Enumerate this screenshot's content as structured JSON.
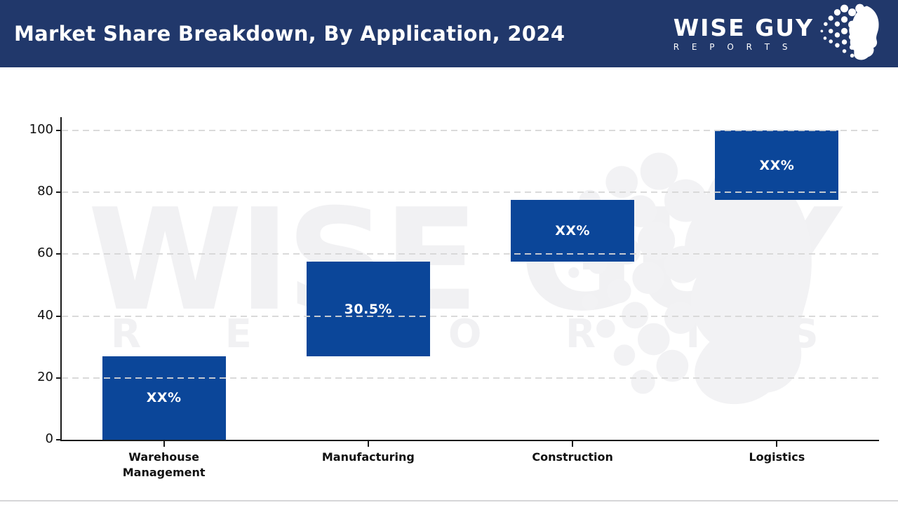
{
  "header": {
    "title": "Market Share Breakdown, By Application, 2024",
    "bg_color": "#21386b",
    "logo": {
      "line1": "WISE GUY",
      "line2": "R E P O R T S",
      "icon": "dot-face-profile-icon",
      "color": "#ffffff"
    }
  },
  "watermark": {
    "line1": "WISE GUY",
    "line2": "R E P O R T S",
    "icon": "dot-face-profile-icon",
    "color": "#f1f1f3"
  },
  "chart_data": {
    "type": "bar",
    "variant": "waterfall",
    "title": "Market Share Breakdown, By Application, 2024",
    "categories": [
      "Warehouse Management",
      "Manufacturing",
      "Construction",
      "Logistics"
    ],
    "segments": [
      {
        "category": "Warehouse\nManagement",
        "start": 0,
        "end": 27,
        "label": "XX%"
      },
      {
        "category": "Manufacturing",
        "start": 27,
        "end": 57.5,
        "label": "30.5%"
      },
      {
        "category": "Construction",
        "start": 57.5,
        "end": 77.5,
        "label": "XX%"
      },
      {
        "category": "Logistics",
        "start": 77.5,
        "end": 100,
        "label": "XX%"
      }
    ],
    "yticks": [
      0,
      20,
      40,
      60,
      80,
      100
    ],
    "ylim": [
      0,
      104
    ],
    "xlabel": "",
    "ylabel": "",
    "grid": true,
    "grid_style": "dashed",
    "grid_over_bars": true,
    "legend": false,
    "bar_color": "#0b4699",
    "value_label_color": "#ffffff",
    "axis_color": "#1a1a1a",
    "grid_color": "#d9d9d9"
  }
}
